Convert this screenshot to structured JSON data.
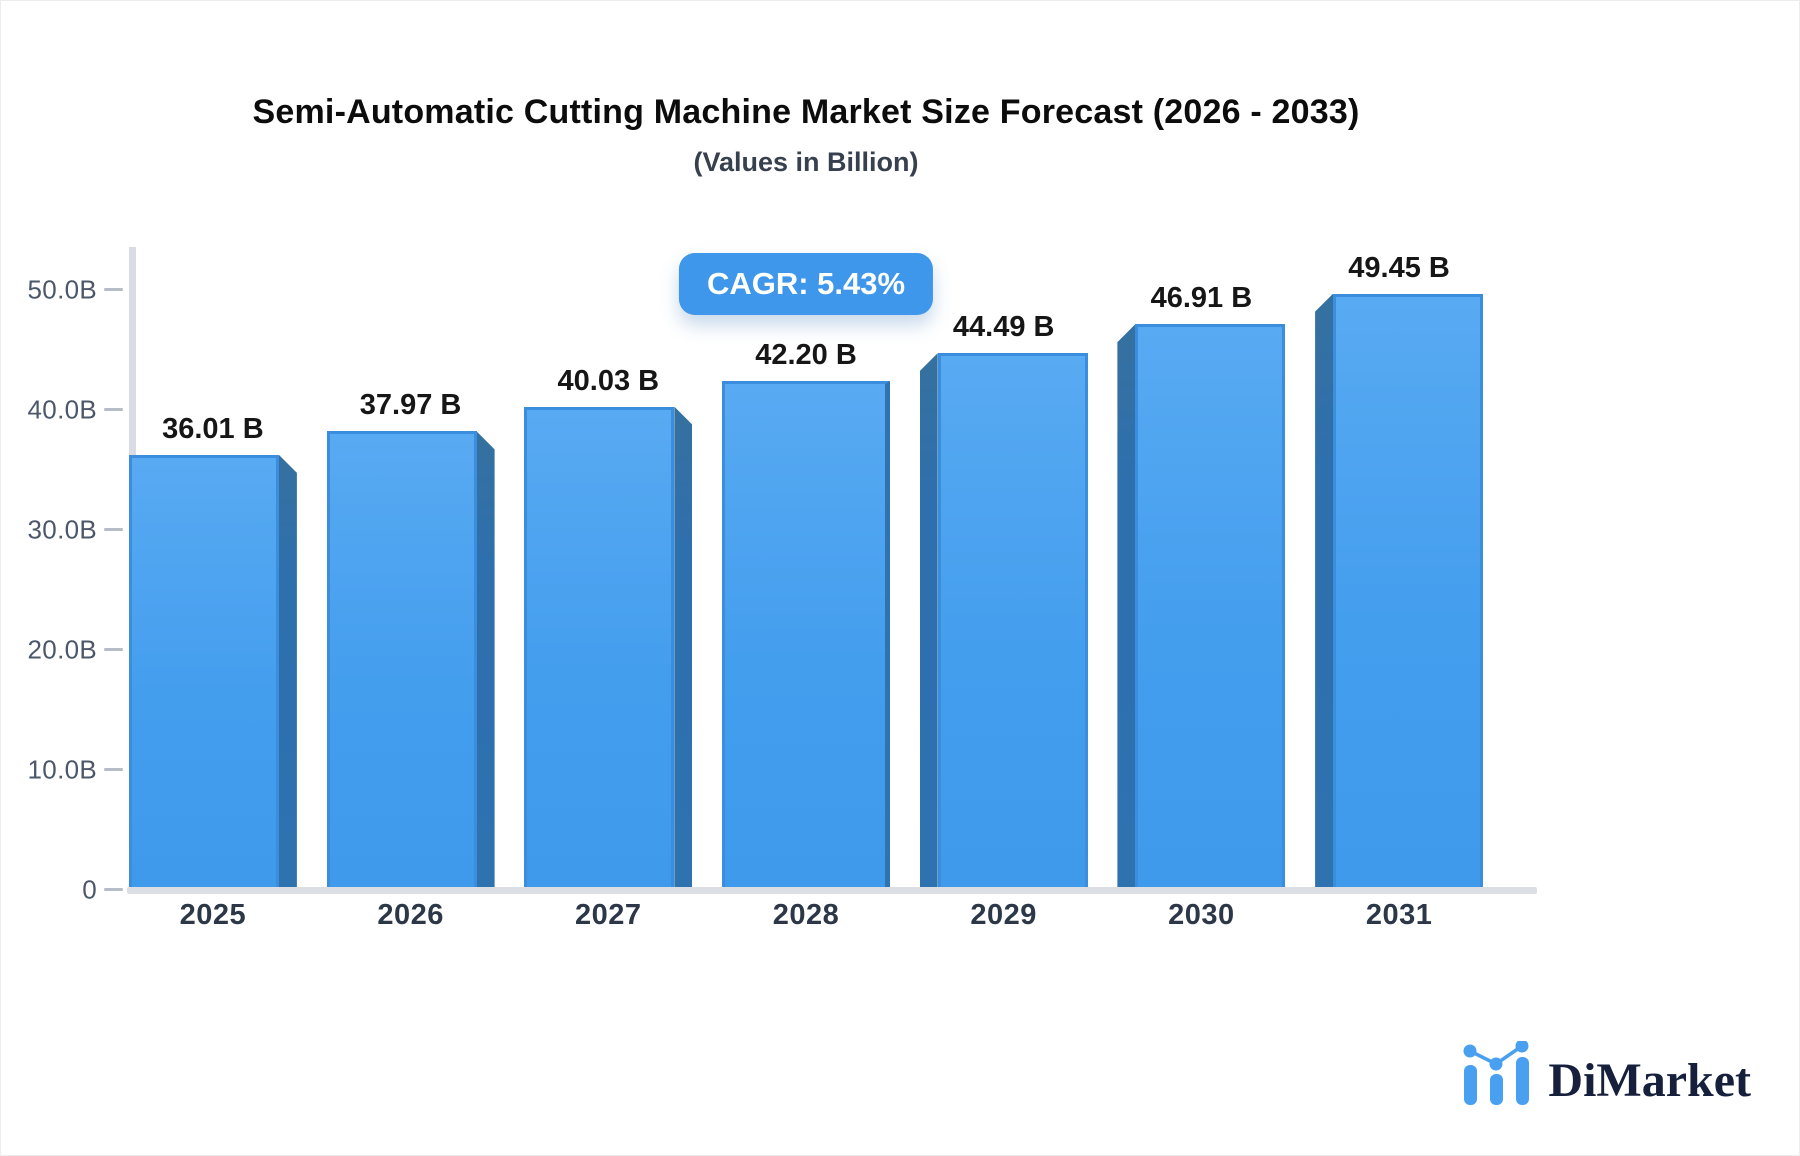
{
  "header": {
    "title": "Semi-Automatic Cutting Machine Market Size Forecast (2026 - 2033)",
    "subtitle": "(Values in Billion)",
    "cagr_badge": "CAGR: 5.43%"
  },
  "chart_data": {
    "type": "bar",
    "title": "Semi-Automatic Cutting Machine Market Size Forecast (2026 - 2033)",
    "subtitle": "(Values in Billion)",
    "categories": [
      "2025",
      "2026",
      "2027",
      "2028",
      "2029",
      "2030",
      "2031"
    ],
    "values": [
      36.01,
      37.97,
      40.03,
      42.2,
      44.49,
      46.91,
      49.45
    ],
    "value_labels": [
      "36.01 B",
      "37.97 B",
      "40.03 B",
      "42.20 B",
      "44.49 B",
      "46.91 B",
      "49.45 B"
    ],
    "xlabel": "",
    "ylabel": "",
    "ylim": [
      0,
      50
    ],
    "ytick_labels": [
      "50.0B",
      "40.0B",
      "30.0B",
      "20.0B",
      "10.0B",
      "0"
    ],
    "ytick_values": [
      50,
      40,
      30,
      20,
      10,
      0
    ],
    "grid": false,
    "legend": false,
    "annotation": "CAGR: 5.43%",
    "colors": {
      "bar_front": "#449eee",
      "bar_border": "#3b8ede",
      "bar_side": "#2e6fae",
      "badge_bg": "#3e97ea",
      "badge_text": "#ffffff",
      "axis": "#d9dde3",
      "tick_text": "#4c586a",
      "year_text": "#2c3747"
    }
  },
  "logo": {
    "text": "DiMarket",
    "icon": "bar-chart-logo-icon",
    "icon_color": "#4aa0f0",
    "text_color": "#16203c"
  }
}
